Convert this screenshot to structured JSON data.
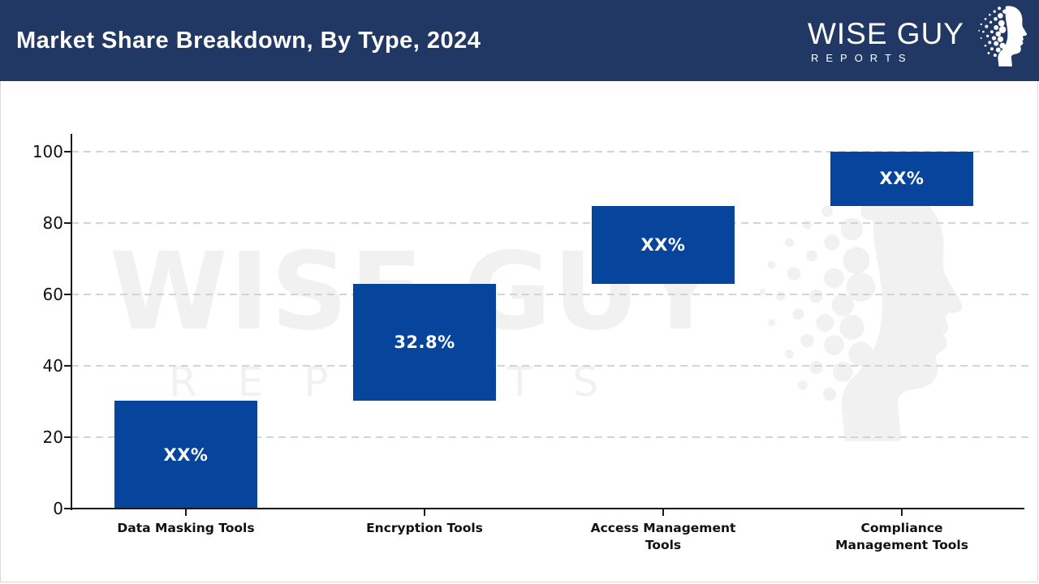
{
  "header": {
    "title": "Market Share Breakdown, By Type, 2024",
    "logo": {
      "primary": "WISE GUY",
      "secondary": "REPORTS"
    }
  },
  "watermark": {
    "primary": "WISE GUY",
    "secondary": "REPORTS"
  },
  "colors": {
    "header_bg": "#213864",
    "bar": "#07449B",
    "grid": "#CDD0D6",
    "axis": "#1A1A1A",
    "value_label": "#FFFFFF",
    "watermark": "#F1F1F1",
    "frame_border": "#D9D9D9"
  },
  "chart_data": {
    "type": "bar",
    "subtype": "waterfall",
    "title": "Market Share Breakdown, By Type, 2024",
    "xlabel": "",
    "ylabel": "",
    "ylim": [
      0,
      105
    ],
    "yticks": [
      0,
      20,
      40,
      60,
      80,
      100
    ],
    "grid": "horizontal-dashed",
    "legend": "none",
    "categories": [
      "Data Masking Tools",
      "Encryption Tools",
      "Access Management\nTools",
      "Compliance\nManagement Tools"
    ],
    "segments": [
      {
        "category": "Data Masking Tools",
        "start": 0,
        "end": 30.2,
        "value_label": "XX%"
      },
      {
        "category": "Encryption Tools",
        "start": 30.2,
        "end": 63.0,
        "value_label": "32.8%"
      },
      {
        "category": "Access Management Tools",
        "start": 63.0,
        "end": 84.8,
        "value_label": "XX%"
      },
      {
        "category": "Compliance Management Tools",
        "start": 84.8,
        "end": 100,
        "value_label": "XX%"
      }
    ]
  }
}
